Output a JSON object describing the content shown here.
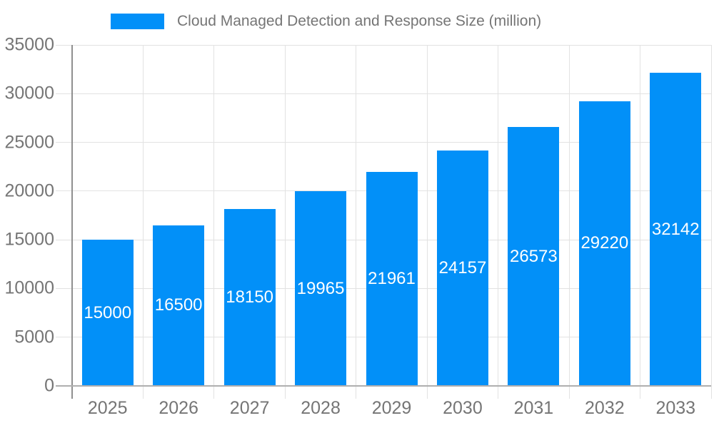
{
  "legend": {
    "label": "Cloud Managed Detection and Response Size (million)"
  },
  "chart_data": {
    "type": "bar",
    "title": "Cloud Managed Detection and Response Size (million)",
    "categories": [
      "2025",
      "2026",
      "2027",
      "2028",
      "2029",
      "2030",
      "2031",
      "2032",
      "2033"
    ],
    "values": [
      15000,
      16500,
      18150,
      19965,
      21961,
      24157,
      26573,
      29220,
      32142
    ],
    "bar_value_labels": [
      "15000",
      "16500",
      "18150",
      "19965",
      "21961",
      "24157",
      "26573",
      "29220",
      "32142"
    ],
    "xlabel": "",
    "ylabel": "",
    "ylim": [
      0,
      35000
    ],
    "ytick_step": 5000,
    "ytick_labels": [
      "0",
      "5000",
      "10000",
      "15000",
      "20000",
      "25000",
      "30000",
      "35000"
    ],
    "grid": true,
    "legend_position": "top",
    "colors": {
      "bar": "#0290f8",
      "bar_value_text": "#ffffff",
      "axis_text": "#757575",
      "legend_text": "#757575",
      "grid_line": "#e2e2e2",
      "axis_line": "#8f8f8f",
      "baseline": "#afafaf",
      "tick_line": "#d6d6d6"
    }
  }
}
